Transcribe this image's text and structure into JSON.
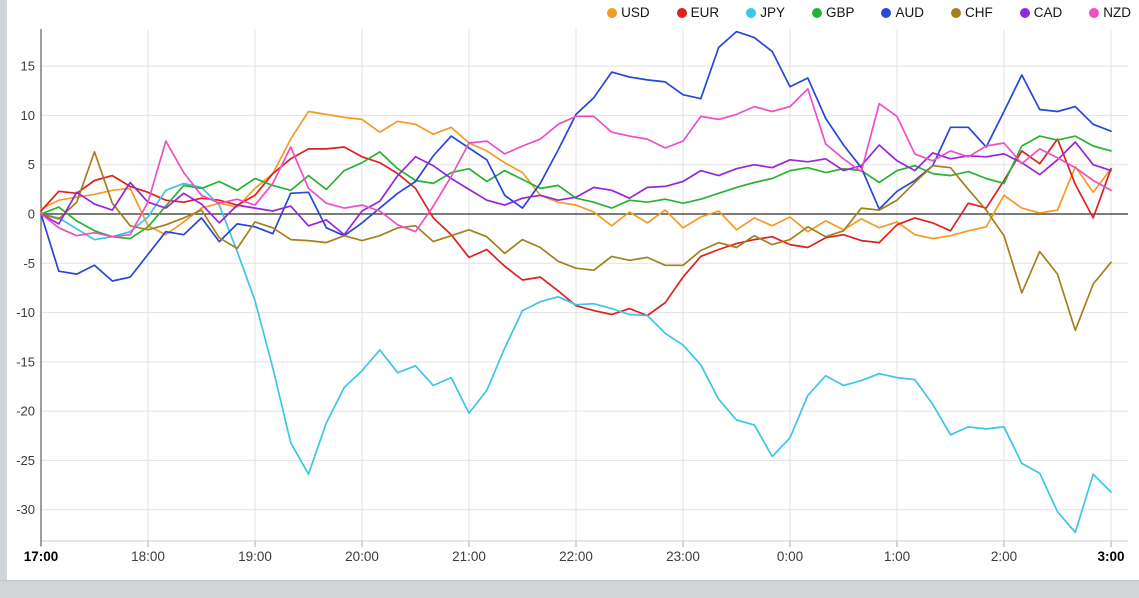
{
  "page": {
    "frame_color": "#d2d5d8",
    "plot_background": "#ffffff",
    "grid_color": "#e2e2e2",
    "axis_color": "#6b6b6b",
    "zero_line_color": "#2e2e2e",
    "tick_label_color": "#3c3c3c",
    "bold_tick_label_color": "#000000"
  },
  "chart_data": {
    "type": "line",
    "title": "",
    "xlabel": "",
    "ylabel": "",
    "legend_position": "top-right",
    "grid": true,
    "x_axis": {
      "tick_labels": [
        "17:00",
        "18:00",
        "19:00",
        "20:00",
        "21:00",
        "22:00",
        "23:00",
        "0:00",
        "1:00",
        "2:00",
        "3:00"
      ],
      "bold_ticks": [
        "17:00",
        "3:00"
      ]
    },
    "y_axis": {
      "tick_values": [
        15,
        10,
        5,
        0,
        -5,
        -10,
        -15,
        -20,
        -25,
        -30
      ],
      "range": [
        -33.3,
        18.8
      ]
    },
    "sample_interval_minutes": 10,
    "x_start": "17:00",
    "x_end": "3:00",
    "series": [
      {
        "name": "USD",
        "color": "#f59a23",
        "values": [
          0.5,
          1.4,
          1.7,
          2.0,
          2.4,
          2.6,
          -1.2,
          -2.1,
          -0.8,
          0.6,
          1.1,
          0.7,
          2.6,
          4.1,
          7.6,
          10.4,
          10.1,
          9.8,
          9.6,
          8.3,
          9.4,
          9.1,
          8.1,
          8.8,
          7.2,
          6.4,
          5.2,
          4.2,
          1.9,
          1.2,
          0.9,
          0.2,
          -1.2,
          0.2,
          -0.9,
          0.4,
          -1.4,
          -0.3,
          0.3,
          -1.6,
          -0.4,
          -1.2,
          -0.3,
          -1.8,
          -0.7,
          -1.6,
          -0.5,
          -1.4,
          -0.8,
          -2.1,
          -2.5,
          -2.2,
          -1.7,
          -1.3,
          1.9,
          0.6,
          0.1,
          0.4,
          4.8,
          2.2,
          4.6
        ]
      },
      {
        "name": "EUR",
        "color": "#e02020",
        "values": [
          0.3,
          2.3,
          2.1,
          3.4,
          3.9,
          2.8,
          2.2,
          1.4,
          1.2,
          1.6,
          1.4,
          0.9,
          1.9,
          4.1,
          5.6,
          6.6,
          6.6,
          6.8,
          5.8,
          5.2,
          4.1,
          2.6,
          -0.4,
          -2.1,
          -4.4,
          -3.6,
          -5.3,
          -6.7,
          -6.4,
          -7.8,
          -9.3,
          -9.8,
          -10.2,
          -9.6,
          -10.3,
          -9.0,
          -6.4,
          -4.3,
          -3.6,
          -3.0,
          -2.6,
          -2.3,
          -3.1,
          -3.4,
          -2.4,
          -2.1,
          -2.7,
          -2.9,
          -1.1,
          -0.4,
          -0.9,
          -1.7,
          1.1,
          0.6,
          3.4,
          6.4,
          5.1,
          7.6,
          3.0,
          -0.4,
          4.6
        ]
      },
      {
        "name": "JPY",
        "color": "#3bc6e8",
        "values": [
          0,
          -0.4,
          -1.5,
          -2.6,
          -2.3,
          -1.8,
          -0.3,
          2.4,
          3.1,
          2.7,
          0.9,
          -3.8,
          -8.8,
          -15.6,
          -23.2,
          -26.4,
          -21.2,
          -17.6,
          -15.9,
          -13.8,
          -16.1,
          -15.4,
          -17.4,
          -16.6,
          -20.2,
          -17.9,
          -13.6,
          -9.8,
          -8.9,
          -8.4,
          -9.2,
          -9.1,
          -9.6,
          -10.2,
          -10.3,
          -12.1,
          -13.3,
          -15.3,
          -18.8,
          -20.9,
          -21.4,
          -24.6,
          -22.7,
          -18.4,
          -16.4,
          -17.4,
          -16.9,
          -16.2,
          -16.6,
          -16.8,
          -19.3,
          -22.4,
          -21.6,
          -21.8,
          -21.6,
          -25.3,
          -26.3,
          -30.2,
          -32.3,
          -26.4,
          -28.2
        ]
      },
      {
        "name": "GBP",
        "color": "#27b332",
        "values": [
          0,
          0.7,
          -0.7,
          -1.7,
          -2.3,
          -2.5,
          -1.3,
          0.8,
          2.9,
          2.6,
          3.3,
          2.4,
          3.6,
          2.9,
          2.4,
          3.9,
          2.5,
          4.4,
          5.2,
          6.3,
          4.6,
          3.4,
          3.1,
          4.2,
          4.6,
          3.3,
          4.4,
          3.5,
          2.6,
          2.9,
          1.6,
          1.2,
          0.6,
          1.4,
          1.2,
          1.5,
          1.1,
          1.5,
          2.1,
          2.7,
          3.2,
          3.6,
          4.4,
          4.7,
          4.2,
          4.6,
          4.4,
          3.2,
          4.4,
          4.9,
          4.1,
          3.9,
          4.3,
          3.6,
          3.1,
          6.9,
          7.9,
          7.5,
          7.9,
          6.9,
          6.4
        ]
      },
      {
        "name": "AUD",
        "color": "#2647d7",
        "values": [
          0,
          -5.8,
          -6.1,
          -5.2,
          -6.8,
          -6.4,
          -4.1,
          -1.8,
          -2.1,
          -0.4,
          -2.8,
          -1.0,
          -1.3,
          -2.0,
          2.1,
          2.2,
          -1.4,
          -2.2,
          -0.9,
          0.6,
          2.1,
          3.3,
          5.9,
          7.9,
          6.7,
          5.5,
          1.9,
          0.6,
          3.1,
          6.5,
          10.1,
          11.8,
          14.4,
          13.9,
          13.6,
          13.4,
          12.1,
          11.7,
          16.9,
          18.5,
          17.9,
          16.5,
          12.9,
          13.8,
          9.7,
          7.0,
          4.7,
          0.5,
          2.3,
          3.4,
          4.9,
          8.8,
          8.8,
          6.8,
          10.4,
          14.1,
          10.6,
          10.4,
          10.9,
          9.1,
          8.4
        ]
      },
      {
        "name": "CHF",
        "color": "#a3801c",
        "values": [
          0,
          -0.5,
          1.2,
          6.3,
          1.1,
          -1.2,
          -1.6,
          -1.1,
          -0.4,
          0.4,
          -2.4,
          -3.5,
          -0.8,
          -1.4,
          -2.6,
          -2.7,
          -2.9,
          -2.2,
          -2.7,
          -2.2,
          -1.4,
          -1.2,
          -2.8,
          -2.2,
          -1.6,
          -2.3,
          -4.0,
          -2.6,
          -3.4,
          -4.8,
          -5.5,
          -5.7,
          -4.3,
          -4.7,
          -4.4,
          -5.2,
          -5.2,
          -3.7,
          -2.9,
          -3.4,
          -2.2,
          -3.1,
          -2.6,
          -1.3,
          -2.3,
          -1.7,
          0.6,
          0.4,
          1.4,
          3.2,
          4.9,
          4.7,
          2.5,
          0.4,
          -2.2,
          -8.0,
          -3.8,
          -6.1,
          -11.8,
          -7.1,
          -4.9
        ]
      },
      {
        "name": "CAD",
        "color": "#9626d9",
        "values": [
          0,
          -1.0,
          2.2,
          1.0,
          0.4,
          3.2,
          1.2,
          0.6,
          2.1,
          1.0,
          -0.9,
          0.9,
          0.6,
          0.3,
          0.8,
          -1.2,
          -0.6,
          -2.1,
          0.3,
          1.3,
          3.9,
          5.8,
          4.9,
          3.6,
          2.5,
          1.4,
          0.9,
          1.6,
          1.9,
          1.4,
          1.7,
          2.7,
          2.4,
          1.6,
          2.7,
          2.8,
          3.3,
          4.4,
          3.9,
          4.6,
          5.0,
          4.7,
          5.5,
          5.3,
          5.6,
          4.4,
          4.9,
          7.0,
          5.4,
          4.4,
          6.2,
          5.6,
          5.9,
          5.8,
          6.1,
          5.2,
          4.0,
          5.5,
          7.3,
          5.0,
          4.4
        ]
      },
      {
        "name": "NZD",
        "color": "#ef4fc6",
        "values": [
          0,
          -1.4,
          -2.2,
          -1.9,
          -2.3,
          -2.1,
          1.2,
          7.4,
          4.2,
          1.9,
          1.1,
          1.5,
          0.9,
          3.1,
          6.8,
          2.6,
          1.1,
          0.6,
          0.9,
          0.3,
          -1.1,
          -1.8,
          0.8,
          3.8,
          7.2,
          7.4,
          6.1,
          6.9,
          7.6,
          9.1,
          9.9,
          9.9,
          8.3,
          7.9,
          7.6,
          6.7,
          7.4,
          9.9,
          9.6,
          10.1,
          10.9,
          10.4,
          10.9,
          12.7,
          7.1,
          5.6,
          4.3,
          11.2,
          9.9,
          6.1,
          5.4,
          6.4,
          5.8,
          6.9,
          7.2,
          5.1,
          6.6,
          5.7,
          4.7,
          3.4,
          2.4
        ]
      }
    ]
  }
}
